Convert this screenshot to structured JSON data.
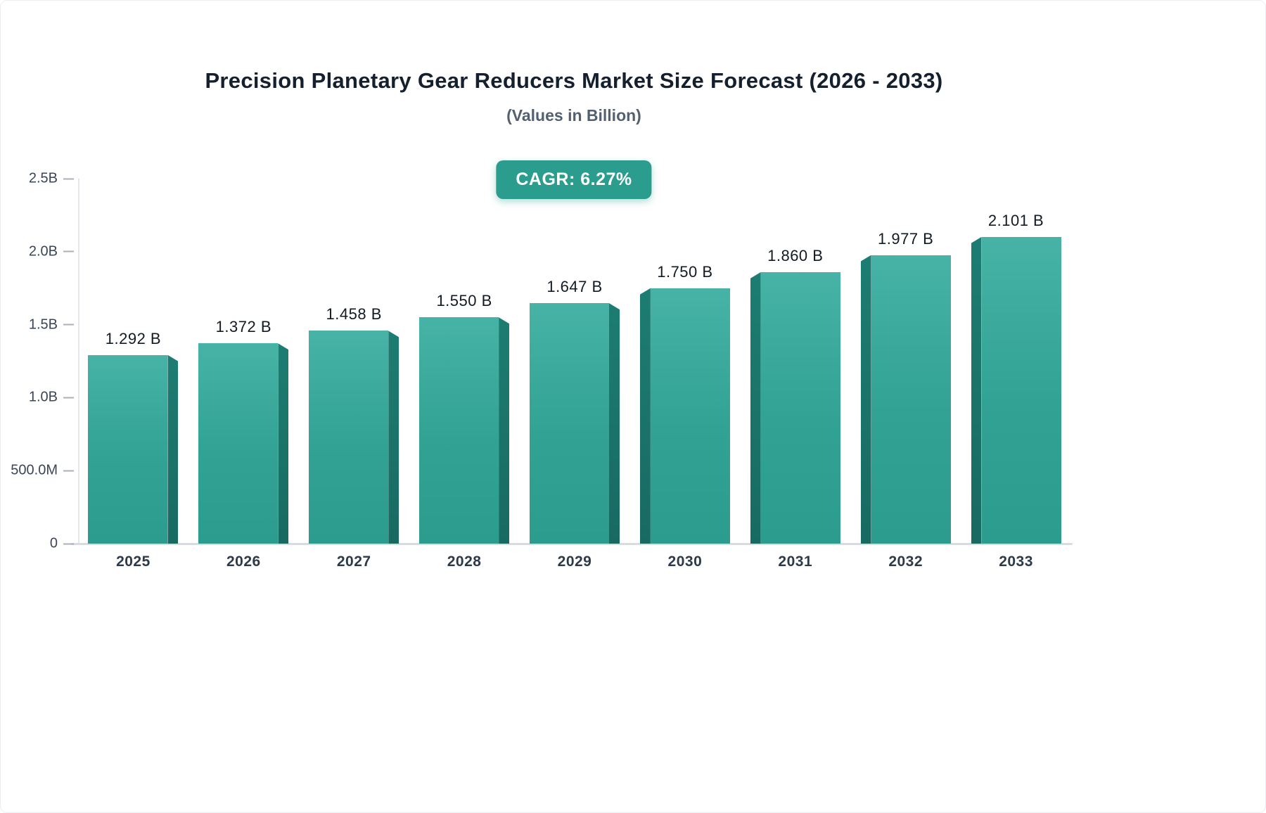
{
  "header": {
    "title": "Precision Planetary Gear Reducers Market Size Forecast (2026 - 2033)",
    "subtitle": "(Values in Billion)",
    "cagr_label": "CAGR: 6.27%"
  },
  "chart_data": {
    "type": "bar",
    "title": "Precision Planetary Gear Reducers Market Size Forecast (2026 - 2033)",
    "subtitle": "(Values in Billion)",
    "annotation": "CAGR: 6.27%",
    "categories": [
      "2025",
      "2026",
      "2027",
      "2028",
      "2029",
      "2030",
      "2031",
      "2032",
      "2033"
    ],
    "values": [
      1.292,
      1.372,
      1.458,
      1.55,
      1.647,
      1.75,
      1.86,
      1.977,
      2.101
    ],
    "value_labels": [
      "1.292 B",
      "1.372 B",
      "1.458 B",
      "1.550 B",
      "1.647 B",
      "1.750 B",
      "1.860 B",
      "1.977 B",
      "2.101 B"
    ],
    "unit": "Billion USD",
    "xlabel": "",
    "ylabel": "",
    "ylim": [
      0,
      2.5
    ],
    "yticks": [
      {
        "value": 2.5,
        "label": "2.5B"
      },
      {
        "value": 2.0,
        "label": "2.0B"
      },
      {
        "value": 1.5,
        "label": "1.5B"
      },
      {
        "value": 1.0,
        "label": "1.0B"
      },
      {
        "value": 0.5,
        "label": "500.0M"
      },
      {
        "value": 0,
        "label": "0"
      }
    ],
    "grid": false,
    "legend": false,
    "colors": {
      "bar_top": "#46b3a6",
      "bar_bottom": "#2b9c8e",
      "bar_side": "#1d7d72",
      "badge_bg": "#2a9d8f",
      "badge_text": "#ffffff",
      "title_text": "#15202e",
      "subtitle_text": "#53606f",
      "axis_line": "#d8dce1"
    }
  }
}
